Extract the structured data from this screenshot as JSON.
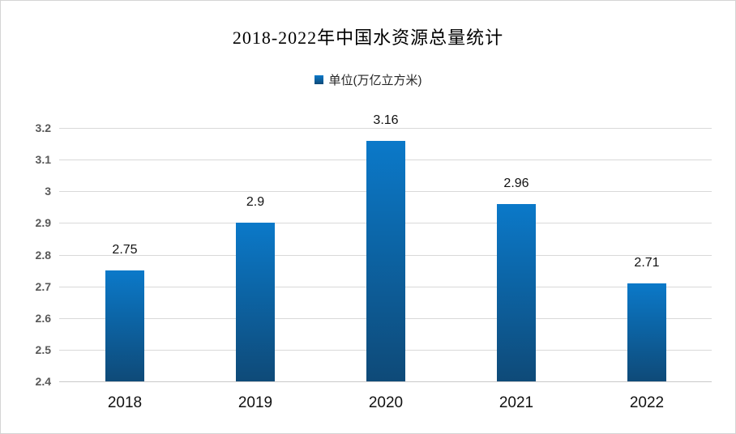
{
  "chart_data": {
    "type": "bar",
    "title": "2018-2022年中国水资源总量统计",
    "legend": {
      "label": "单位(万亿立方米)",
      "position": "top-center"
    },
    "categories": [
      "2018",
      "2019",
      "2020",
      "2021",
      "2022"
    ],
    "values": [
      2.75,
      2.9,
      3.16,
      2.96,
      2.71
    ],
    "value_labels": [
      "2.75",
      "2.9",
      "3.16",
      "2.96",
      "2.71"
    ],
    "ylim": [
      2.4,
      3.2
    ],
    "ytick_step": 0.1,
    "ytick_labels": [
      "3.2",
      "3.1",
      "3",
      "2.9",
      "2.8",
      "2.7",
      "2.6",
      "2.5",
      "2.4"
    ],
    "grid": true,
    "colors": {
      "bar_gradient_top": "#0b79c9",
      "bar_gradient_bottom": "#0e4a78",
      "gridline": "#d9d9d9",
      "axis_line": "#c9c9c9",
      "tick_text": "#595959",
      "label_text": "#111111",
      "title_text": "#000000"
    }
  }
}
